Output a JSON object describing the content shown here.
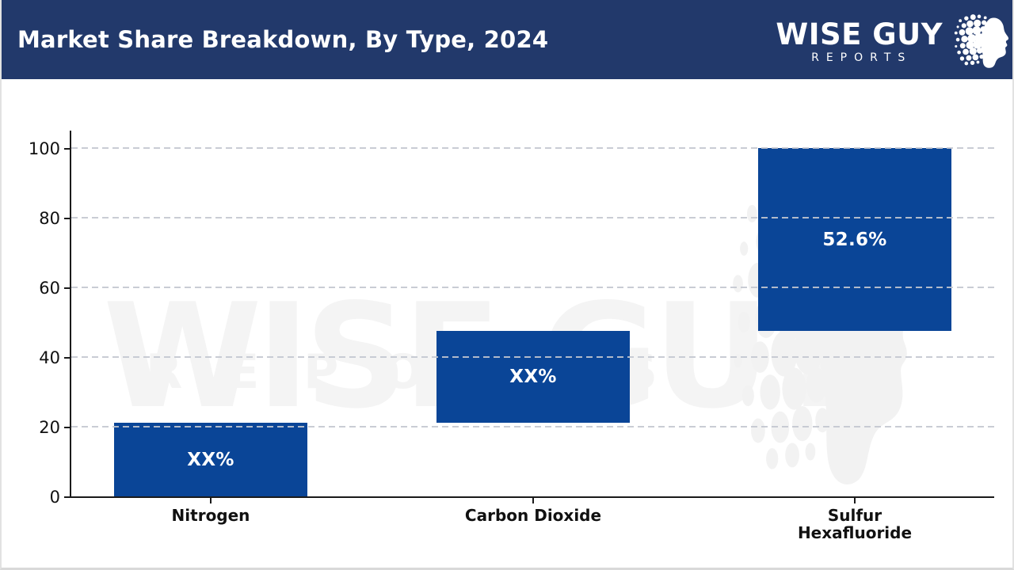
{
  "header": {
    "title": "Market Share Breakdown, By Type, 2024",
    "bg_color": "#22396b",
    "logo": {
      "line1": "WISE GUY",
      "line2": "REPORTS"
    }
  },
  "watermark": {
    "line1": "WISE GUY",
    "line2": "REPORTS",
    "color": "#f4f4f4"
  },
  "chart_data": {
    "type": "bar",
    "subtype": "waterfall-stacked-percentage",
    "title": "Market Share Breakdown, By Type, 2024",
    "categories": [
      "Nitrogen",
      "Carbon Dioxide",
      "Sulfur Hexafluoride"
    ],
    "x_tick_display": [
      "Nitrogen",
      "Carbon Dioxide",
      "Sulfur\nHexafluoride"
    ],
    "segments": [
      {
        "category": "Nitrogen",
        "from": 0,
        "to": 21.1,
        "height": 21.1,
        "label": "XX%"
      },
      {
        "category": "Carbon Dioxide",
        "from": 21.2,
        "to": 47.5,
        "height": 26.3,
        "label": "XX%"
      },
      {
        "category": "Sulfur Hexafluoride",
        "from": 47.4,
        "to": 100,
        "height": 52.6,
        "label": "52.6%"
      }
    ],
    "ylim": [
      0,
      100
    ],
    "y_ticks": [
      0,
      20,
      40,
      60,
      80,
      100
    ],
    "xlabel": "",
    "ylabel": "",
    "grid": "horizontal-dashed-over-bars",
    "legend": "none",
    "bar_color": "#0a4597",
    "bar_label_color": "#ffffff",
    "axis_color": "#1a1a1a",
    "gridline_color": "#c9cdd5"
  }
}
